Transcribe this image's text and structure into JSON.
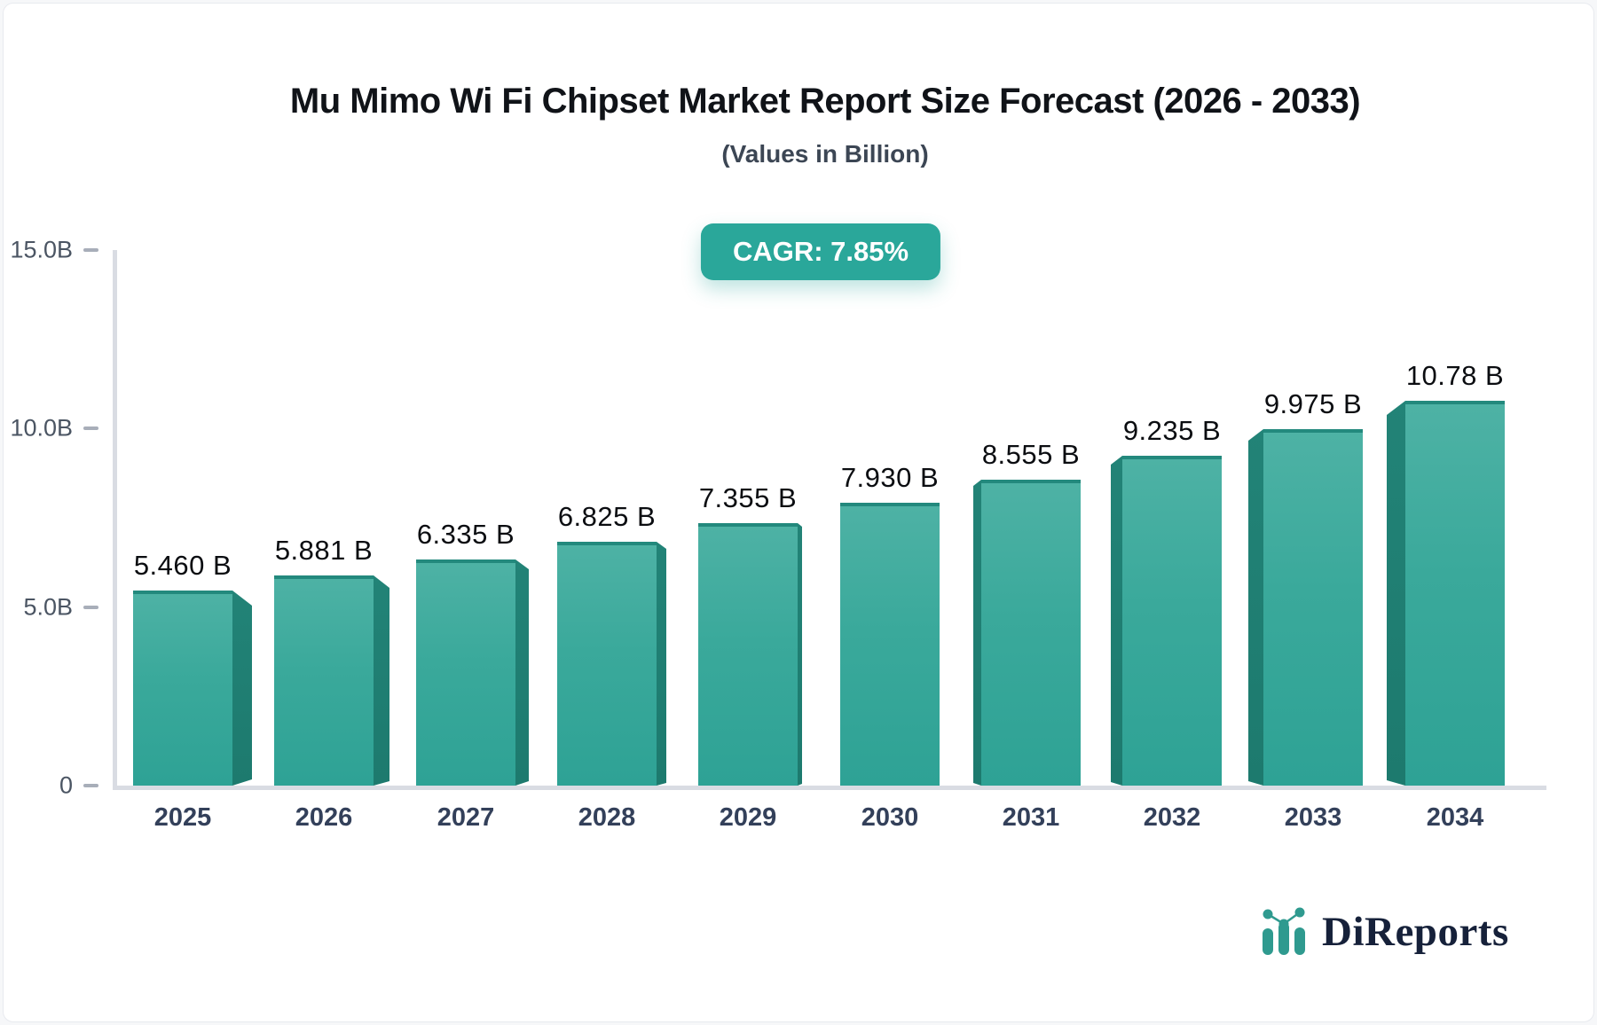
{
  "header": {
    "title": "Mu Mimo Wi Fi Chipset Market Report Size Forecast (2026 - 2033)",
    "subtitle": "(Values in Billion)",
    "cagr_label": "CAGR: 7.85%"
  },
  "chart_data": {
    "type": "bar",
    "title": "Mu Mimo Wi Fi Chipset Market Report Size Forecast (2026 - 2033)",
    "subtitle": "(Values in Billion)",
    "cagr_percent": 7.85,
    "unit": "Billion",
    "categories": [
      "2025",
      "2026",
      "2027",
      "2028",
      "2029",
      "2030",
      "2031",
      "2032",
      "2033",
      "2034"
    ],
    "values": [
      5.46,
      5.881,
      6.335,
      6.825,
      7.355,
      7.93,
      8.555,
      9.235,
      9.975,
      10.78
    ],
    "value_labels": [
      "5.460 B",
      "5.881 B",
      "6.335 B",
      "6.825 B",
      "7.355 B",
      "7.930 B",
      "8.555 B",
      "9.235 B",
      "9.975 B",
      "10.78 B"
    ],
    "xlabel": "",
    "ylabel": "",
    "ylim": [
      0,
      15
    ],
    "grid": false,
    "legend_position": "none",
    "y_ticks": [
      {
        "label": "15.0B",
        "value": 15.0
      },
      {
        "label": "10.0B",
        "value": 10.0
      },
      {
        "label": "5.0B",
        "value": 5.0
      },
      {
        "label": "0",
        "value": 0
      }
    ],
    "colors": {
      "bar_face": "#3aa99b",
      "bar_face_light": "#4eb2a5",
      "bar_top_edge": "#23897d",
      "bar_side": "#1d7a6e",
      "axis": "#d9dce3",
      "tick_dash": "#a8aeb9",
      "tick_text": "#4b5563",
      "category_text": "#33405a",
      "value_text": "#0b0d11",
      "badge_bg": "#2aa79a",
      "badge_text": "#ffffff"
    }
  },
  "branding": {
    "logo_text": "DiReports",
    "logo_icon": "mini-bar-line-chart-icon",
    "logo_icon_color": "#2f9a8f",
    "logo_text_color": "#16213a"
  }
}
